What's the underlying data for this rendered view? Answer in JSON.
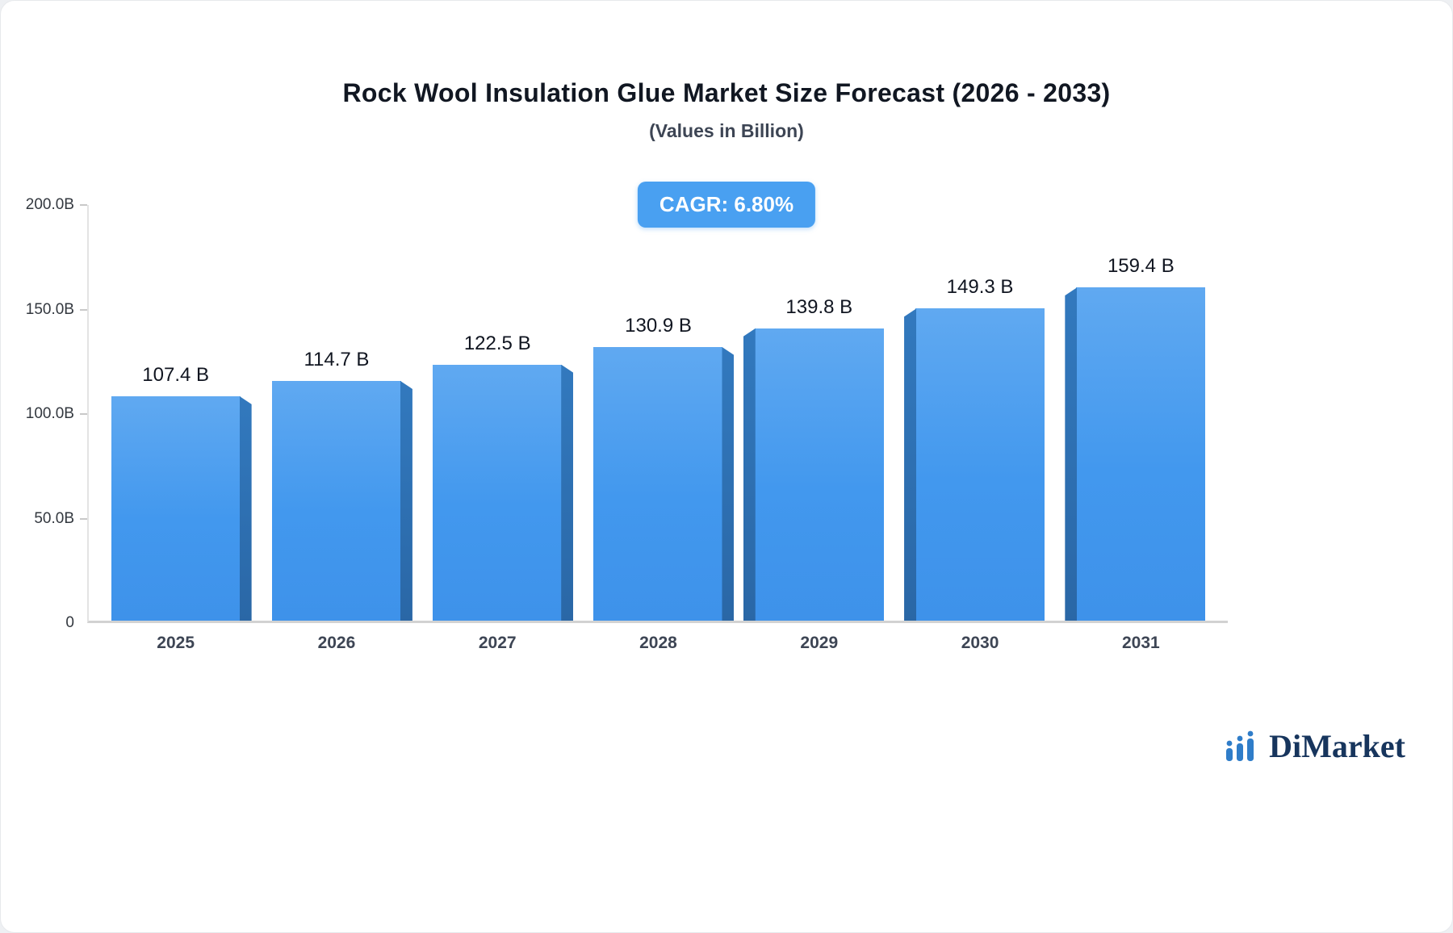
{
  "title": "Rock Wool Insulation Glue Market Size Forecast (2026 - 2033)",
  "subtitle": "(Values in Billion)",
  "badge": {
    "label": "CAGR: 6.80%"
  },
  "brand": {
    "name": "DiMarket"
  },
  "colors": {
    "accent": "#49a0f1",
    "bar_front_top": "#60a9f1",
    "bar_front_bottom": "#3e92ea",
    "bar_side": "#2d6fb2",
    "logo": "#17355d"
  },
  "chart_data": {
    "type": "bar",
    "title": "Rock Wool Insulation Glue Market Size Forecast (2026 - 2033)",
    "subtitle": "(Values in Billion)",
    "cagr": "6.80%",
    "unit": "Billion",
    "categories": [
      "2025",
      "2026",
      "2027",
      "2028",
      "2029",
      "2030",
      "2031"
    ],
    "values": [
      107.4,
      114.7,
      122.5,
      130.9,
      139.8,
      149.3,
      159.4
    ],
    "value_labels": [
      "107.4 B",
      "114.7 B",
      "122.5 B",
      "130.9 B",
      "139.8 B",
      "149.3 B",
      "159.4 B"
    ],
    "xlabel": "",
    "ylabel": "",
    "ylim": [
      0,
      200
    ],
    "grid": false,
    "legend": false,
    "y_ticks": [
      {
        "label": "200.0B",
        "value": 200
      },
      {
        "label": "150.0B",
        "value": 150
      },
      {
        "label": "100.0B",
        "value": 100
      },
      {
        "label": "50.0B",
        "value": 50
      },
      {
        "label": "0",
        "value": 0
      }
    ]
  }
}
